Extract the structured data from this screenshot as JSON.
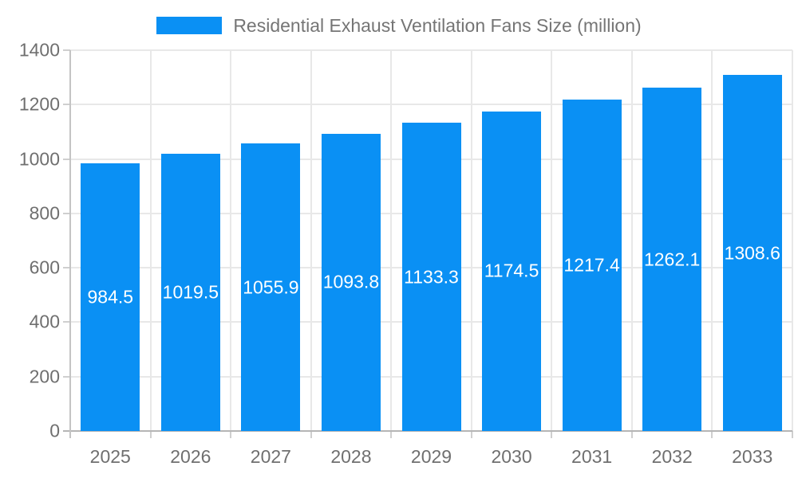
{
  "colors": {
    "bar": "#0a90f4",
    "grid": "#e8e8e8",
    "axis_bottom": "#b5b5b5",
    "axis_left": "#c4c4c4",
    "tick": "#cfcfcf",
    "axis_text": "#6f6f6f",
    "title_text": "#757575",
    "value_label": "#ffffff",
    "background": "#ffffff"
  },
  "chart_data": {
    "type": "bar",
    "title": "Residential Exhaust Ventilation Fans Size (million)",
    "series_name": "Residential Exhaust Ventilation Fans Size (million)",
    "categories": [
      "2025",
      "2026",
      "2027",
      "2028",
      "2029",
      "2030",
      "2031",
      "2032",
      "2033"
    ],
    "values": [
      984.5,
      1019.5,
      1055.9,
      1093.8,
      1133.3,
      1174.5,
      1217.4,
      1262.1,
      1308.6
    ],
    "xlabel": "",
    "ylabel": "",
    "ylim": [
      0,
      1400
    ],
    "yticks": [
      0,
      200,
      400,
      600,
      800,
      1000,
      1200,
      1400
    ],
    "grid": true,
    "legend_position": "top",
    "value_labels_shown": true,
    "value_label_position": "inside-center"
  }
}
